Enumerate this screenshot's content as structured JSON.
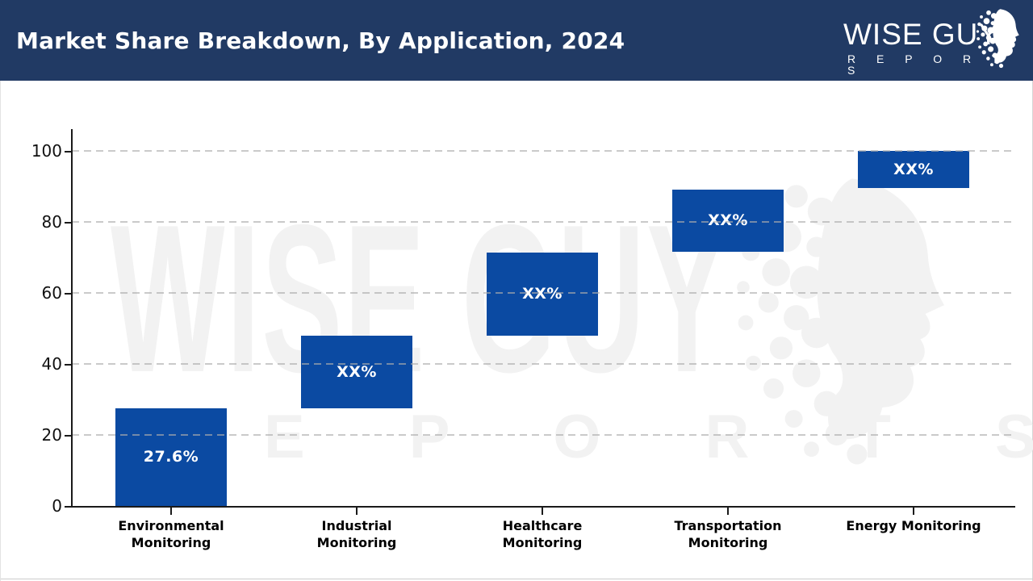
{
  "header": {
    "title": "Market Share Breakdown, By Application, 2024",
    "brand_line1": "WISE GUY",
    "brand_line2": "R E P O R T S",
    "bg_color": "#213a64"
  },
  "watermark": {
    "line1": "WISE GUY",
    "line2": "R E P O R T S"
  },
  "chart_data": {
    "type": "bar",
    "subtype": "waterfall",
    "title": "Market Share Breakdown, By Application, 2024",
    "categories": [
      "Environmental\nMonitoring",
      "Industrial\nMonitoring",
      "Healthcare\nMonitoring",
      "Transportation\nMonitoring",
      "Energy Monitoring"
    ],
    "segments": [
      {
        "category": "Environmental Monitoring",
        "bar_label": "27.6%",
        "start": 0,
        "end": 27.6
      },
      {
        "category": "Industrial Monitoring",
        "bar_label": "XX%",
        "start": 27.6,
        "end": 48.0
      },
      {
        "category": "Healthcare Monitoring",
        "bar_label": "XX%",
        "start": 48.0,
        "end": 71.4
      },
      {
        "category": "Transportation Monitoring",
        "bar_label": "XX%",
        "start": 71.6,
        "end": 89.1
      },
      {
        "category": "Energy Monitoring",
        "bar_label": "XX%",
        "start": 89.5,
        "end": 100.0
      }
    ],
    "yticks": [
      0,
      20,
      40,
      60,
      80,
      100
    ],
    "ylim": [
      0,
      106
    ],
    "xlabel": "",
    "ylabel": "",
    "grid": "dashed-horizontal-over-bars",
    "legend": "none",
    "bar_color": "#0b4aa2",
    "bar_label_color": "#ffffff",
    "axis_color": "#1a1a1a",
    "gridline_color": "#c9c9c9",
    "watermark_color": "#f2f2f2"
  }
}
